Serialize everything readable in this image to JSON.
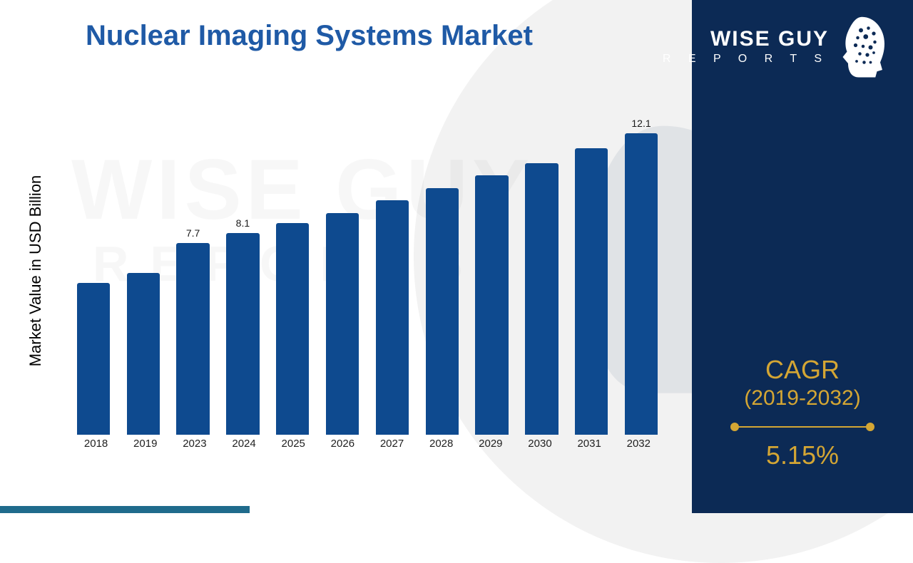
{
  "title": "Nuclear Imaging Systems Market",
  "title_color": "#1f5aa6",
  "ylabel": "Market Value in USD Billion",
  "logo": {
    "line1": "WISE GUY",
    "line2": "R E P O R T S"
  },
  "sidebar_bg": "#0c2a55",
  "cagr": {
    "label": "CAGR",
    "years": "(2019-2032)",
    "value": "5.15%",
    "color": "#d4a634"
  },
  "chart": {
    "type": "bar",
    "bar_color": "#0e4a8f",
    "background": "#ffffff",
    "ymax": 14,
    "show_labels_for": [
      "2023",
      "2024",
      "2032"
    ],
    "categories": [
      "2018",
      "2019",
      "2023",
      "2024",
      "2025",
      "2026",
      "2027",
      "2028",
      "2029",
      "2030",
      "2031",
      "2032"
    ],
    "values": [
      6.1,
      6.5,
      7.7,
      8.1,
      8.5,
      8.9,
      9.4,
      9.9,
      10.4,
      10.9,
      11.5,
      12.1
    ],
    "bar_width_ratio": 0.8,
    "label_fontsize": 14,
    "xtick_fontsize": 15
  },
  "watermark": {
    "line1": "WISE GUY",
    "line2": "REPORTS"
  }
}
